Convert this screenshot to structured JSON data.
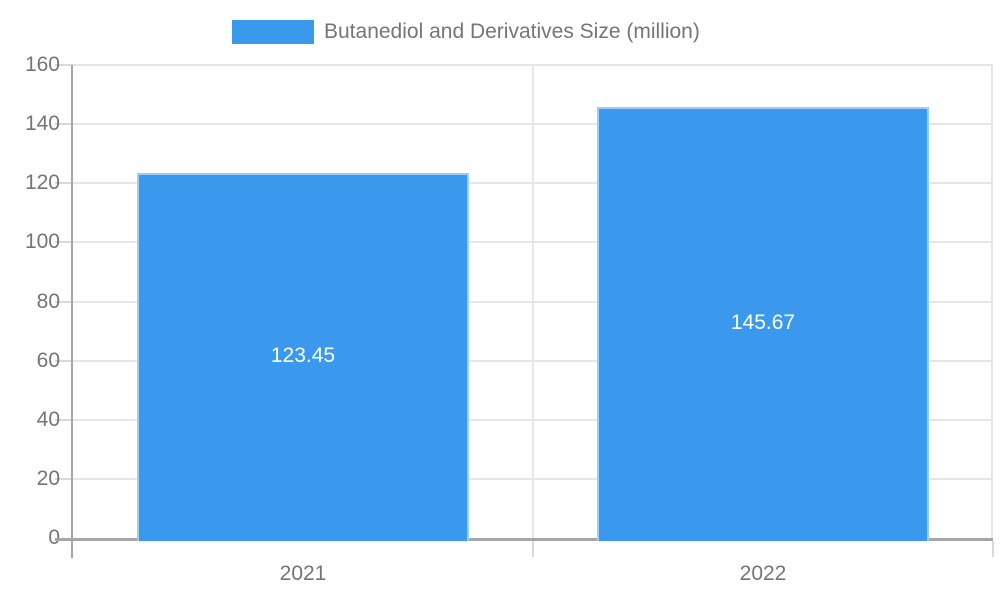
{
  "legend": {
    "label": "Butanediol and Derivatives Size (million)"
  },
  "chart_data": {
    "type": "bar",
    "title": "Butanediol and Derivatives Size (million)",
    "categories": [
      "2021",
      "2022"
    ],
    "series": [
      {
        "name": "Butanediol and Derivatives Size (million)",
        "values": [
          123.45,
          145.67
        ]
      }
    ],
    "value_labels": [
      "123.45",
      "145.67"
    ],
    "xlabel": "",
    "ylabel": "",
    "ylim": [
      0,
      160
    ],
    "y_ticks": [
      0,
      20,
      40,
      60,
      80,
      100,
      120,
      140,
      160
    ],
    "grid": true,
    "legend_position": "top",
    "colors": {
      "bar": "#3a99ec",
      "bar_edge": "#9dcdf5",
      "grid_line": "#e6e6e6",
      "axis_line": "#a6a6a6",
      "tick_line": "#d9d9d9",
      "label_text": "#757575",
      "value_text": "#ffffff",
      "background": "#ffffff"
    }
  }
}
